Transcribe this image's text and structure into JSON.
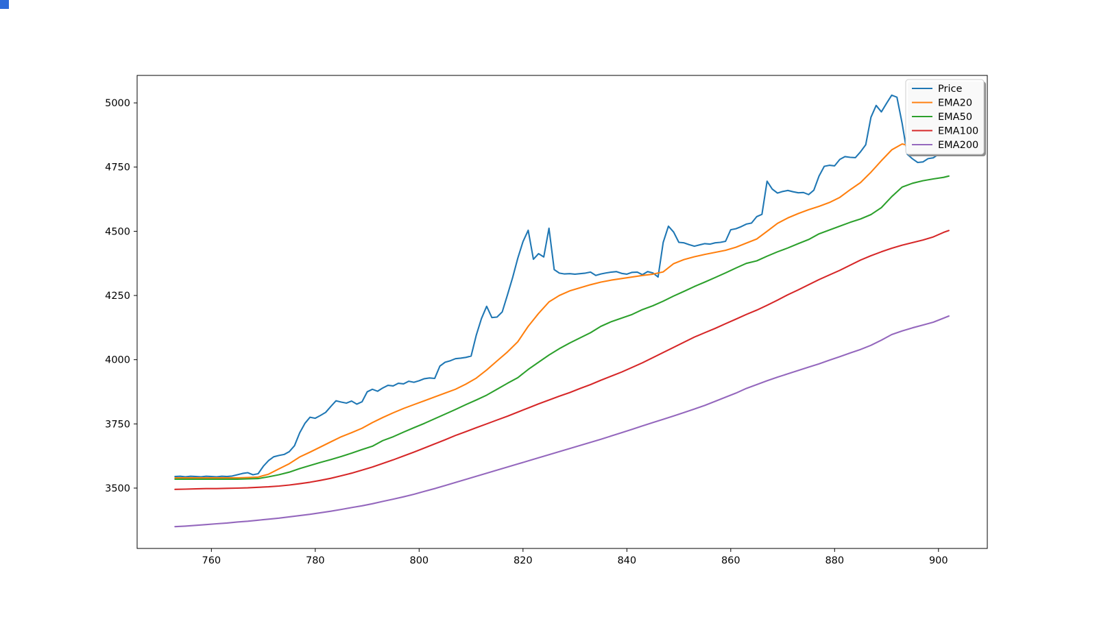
{
  "figure": {
    "background_color": "#ffffff",
    "top_left_artifact_color": "#2e6bd9",
    "spine_color": "#000000",
    "tick_label_color": "#000000",
    "legend": {
      "border_color": "#cccccc",
      "background_color": "#ffffff",
      "shadow_color": "#8c8c8c",
      "entries": [
        "Price",
        "EMA20",
        "EMA50",
        "EMA100",
        "EMA200"
      ]
    }
  },
  "chart_data": {
    "type": "line",
    "title": "",
    "xlabel": "",
    "ylabel": "",
    "grid": false,
    "legend_position": "upper right",
    "xlim": [
      745.7,
      909.4
    ],
    "ylim": [
      3265,
      5107
    ],
    "x_ticks": [
      760,
      780,
      800,
      820,
      840,
      860,
      880,
      900
    ],
    "y_ticks": [
      3500,
      3750,
      4000,
      4250,
      4500,
      4750,
      5000
    ],
    "series": [
      {
        "name": "Price",
        "color": "#1f77b4",
        "x_start": 753,
        "x_step": 1,
        "values": [
          3545,
          3546,
          3544,
          3546,
          3545,
          3544,
          3546,
          3545,
          3544,
          3546,
          3545,
          3547,
          3552,
          3557,
          3560,
          3552,
          3556,
          3585,
          3607,
          3622,
          3627,
          3631,
          3642,
          3665,
          3715,
          3752,
          3776,
          3772,
          3783,
          3795,
          3818,
          3840,
          3835,
          3831,
          3839,
          3827,
          3836,
          3875,
          3885,
          3877,
          3890,
          3900,
          3898,
          3908,
          3906,
          3916,
          3912,
          3918,
          3926,
          3929,
          3927,
          3975,
          3990,
          3996,
          4004,
          4006,
          4009,
          4014,
          4095,
          4160,
          4208,
          4164,
          4166,
          4186,
          4252,
          4320,
          4395,
          4460,
          4504,
          4391,
          4413,
          4400,
          4512,
          4351,
          4337,
          4334,
          4335,
          4333,
          4335,
          4337,
          4341,
          4328,
          4334,
          4338,
          4341,
          4343,
          4336,
          4333,
          4340,
          4341,
          4331,
          4343,
          4338,
          4322,
          4457,
          4520,
          4497,
          4457,
          4455,
          4448,
          4442,
          4447,
          4452,
          4450,
          4455,
          4457,
          4461,
          4506,
          4510,
          4518,
          4528,
          4532,
          4557,
          4566,
          4695,
          4664,
          4649,
          4655,
          4659,
          4654,
          4650,
          4651,
          4643,
          4660,
          4715,
          4753,
          4757,
          4755,
          4780,
          4791,
          4788,
          4787,
          4810,
          4837,
          4944,
          4990,
          4965,
          4998,
          5030,
          5022,
          4920,
          4800,
          4782,
          4768,
          4770,
          4783,
          4786,
          4800,
          4810,
          4815
        ]
      },
      {
        "name": "EMA20",
        "color": "#ff7f0e",
        "x": [
          753,
          755,
          757,
          759,
          761,
          763,
          765,
          767,
          769,
          771,
          773,
          775,
          777,
          779,
          781,
          783,
          785,
          787,
          789,
          791,
          793,
          795,
          797,
          799,
          801,
          803,
          805,
          807,
          809,
          811,
          813,
          815,
          817,
          819,
          821,
          823,
          825,
          827,
          829,
          831,
          833,
          835,
          837,
          839,
          841,
          843,
          845,
          847,
          849,
          851,
          853,
          855,
          857,
          859,
          861,
          863,
          865,
          867,
          869,
          871,
          873,
          875,
          877,
          879,
          881,
          883,
          885,
          887,
          889,
          891,
          893,
          895,
          897,
          899,
          901,
          902
        ],
        "values": [
          3540,
          3540,
          3540,
          3540,
          3540,
          3540,
          3540,
          3541,
          3543,
          3554,
          3575,
          3595,
          3621,
          3640,
          3660,
          3680,
          3700,
          3716,
          3733,
          3755,
          3775,
          3793,
          3810,
          3825,
          3840,
          3855,
          3870,
          3885,
          3905,
          3928,
          3960,
          3995,
          4030,
          4070,
          4130,
          4180,
          4225,
          4250,
          4268,
          4280,
          4292,
          4302,
          4310,
          4316,
          4322,
          4328,
          4333,
          4342,
          4374,
          4390,
          4401,
          4410,
          4418,
          4426,
          4438,
          4454,
          4470,
          4500,
          4531,
          4552,
          4569,
          4584,
          4597,
          4612,
          4632,
          4662,
          4690,
          4730,
          4775,
          4817,
          4840,
          4830,
          4818,
          4812,
          4811,
          4810
        ]
      },
      {
        "name": "EMA50",
        "color": "#2ca02c",
        "x": [
          753,
          755,
          757,
          759,
          761,
          763,
          765,
          767,
          769,
          771,
          773,
          775,
          777,
          779,
          781,
          783,
          785,
          787,
          789,
          791,
          793,
          795,
          797,
          799,
          801,
          803,
          805,
          807,
          809,
          811,
          813,
          815,
          817,
          819,
          821,
          823,
          825,
          827,
          829,
          831,
          833,
          835,
          837,
          839,
          841,
          843,
          845,
          847,
          849,
          851,
          853,
          855,
          857,
          859,
          861,
          863,
          865,
          867,
          869,
          871,
          873,
          875,
          877,
          879,
          881,
          883,
          885,
          887,
          889,
          891,
          893,
          895,
          897,
          899,
          901,
          902
        ],
        "values": [
          3535,
          3535,
          3535,
          3535,
          3535,
          3535,
          3535,
          3536,
          3537,
          3544,
          3552,
          3562,
          3576,
          3588,
          3600,
          3611,
          3623,
          3636,
          3650,
          3663,
          3685,
          3700,
          3718,
          3735,
          3752,
          3770,
          3788,
          3806,
          3825,
          3843,
          3862,
          3885,
          3908,
          3930,
          3962,
          3990,
          4018,
          4043,
          4065,
          4085,
          4105,
          4130,
          4148,
          4162,
          4176,
          4195,
          4210,
          4228,
          4248,
          4266,
          4285,
          4302,
          4320,
          4338,
          4357,
          4375,
          4385,
          4403,
          4420,
          4435,
          4452,
          4468,
          4490,
          4505,
          4520,
          4535,
          4548,
          4565,
          4592,
          4635,
          4672,
          4687,
          4697,
          4704,
          4710,
          4715
        ]
      },
      {
        "name": "EMA100",
        "color": "#d62728",
        "x": [
          753,
          755,
          757,
          759,
          761,
          763,
          765,
          767,
          769,
          771,
          773,
          775,
          777,
          779,
          781,
          783,
          785,
          787,
          789,
          791,
          793,
          795,
          797,
          799,
          801,
          803,
          805,
          807,
          809,
          811,
          813,
          815,
          817,
          819,
          821,
          823,
          825,
          827,
          829,
          831,
          833,
          835,
          837,
          839,
          841,
          843,
          845,
          847,
          849,
          851,
          853,
          855,
          857,
          859,
          861,
          863,
          865,
          867,
          869,
          871,
          873,
          875,
          877,
          879,
          881,
          883,
          885,
          887,
          889,
          891,
          893,
          895,
          897,
          899,
          901,
          902
        ],
        "values": [
          3495,
          3496,
          3497,
          3498,
          3498,
          3499,
          3500,
          3501,
          3503,
          3505,
          3508,
          3512,
          3517,
          3523,
          3530,
          3538,
          3548,
          3558,
          3570,
          3582,
          3596,
          3610,
          3625,
          3640,
          3656,
          3672,
          3688,
          3705,
          3720,
          3735,
          3750,
          3765,
          3780,
          3796,
          3812,
          3828,
          3843,
          3858,
          3872,
          3888,
          3903,
          3920,
          3936,
          3952,
          3970,
          3988,
          4008,
          4028,
          4048,
          4068,
          4088,
          4105,
          4122,
          4140,
          4158,
          4176,
          4193,
          4212,
          4232,
          4253,
          4272,
          4292,
          4312,
          4330,
          4348,
          4368,
          4388,
          4405,
          4420,
          4434,
          4446,
          4456,
          4466,
          4478,
          4496,
          4503
        ]
      },
      {
        "name": "EMA200",
        "color": "#9467bd",
        "x": [
          753,
          755,
          757,
          759,
          761,
          763,
          765,
          767,
          769,
          771,
          773,
          775,
          777,
          779,
          781,
          783,
          785,
          787,
          789,
          791,
          793,
          795,
          797,
          799,
          801,
          803,
          805,
          807,
          809,
          811,
          813,
          815,
          817,
          819,
          821,
          823,
          825,
          827,
          829,
          831,
          833,
          835,
          837,
          839,
          841,
          843,
          845,
          847,
          849,
          851,
          853,
          855,
          857,
          859,
          861,
          863,
          865,
          867,
          869,
          871,
          873,
          875,
          877,
          879,
          881,
          883,
          885,
          887,
          889,
          891,
          893,
          895,
          897,
          899,
          901,
          902
        ],
        "values": [
          3350,
          3352,
          3355,
          3358,
          3361,
          3364,
          3368,
          3371,
          3375,
          3379,
          3383,
          3388,
          3393,
          3398,
          3404,
          3410,
          3417,
          3424,
          3431,
          3439,
          3448,
          3457,
          3466,
          3476,
          3487,
          3498,
          3510,
          3522,
          3534,
          3546,
          3558,
          3570,
          3582,
          3594,
          3606,
          3618,
          3630,
          3642,
          3654,
          3666,
          3678,
          3690,
          3703,
          3716,
          3729,
          3742,
          3755,
          3768,
          3781,
          3794,
          3808,
          3822,
          3838,
          3854,
          3870,
          3888,
          3903,
          3918,
          3932,
          3945,
          3958,
          3971,
          3984,
          3998,
          4012,
          4026,
          4040,
          4056,
          4076,
          4098,
          4112,
          4124,
          4135,
          4146,
          4162,
          4170
        ]
      }
    ]
  }
}
